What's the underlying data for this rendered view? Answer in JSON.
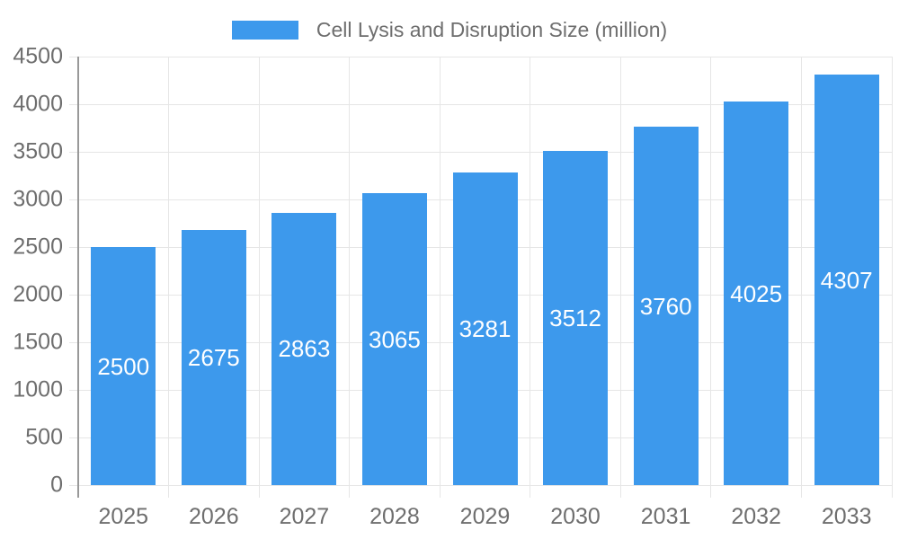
{
  "chart_data": {
    "type": "bar",
    "title": "Cell Lysis and Disruption Size (million)",
    "categories": [
      "2025",
      "2026",
      "2027",
      "2028",
      "2029",
      "2030",
      "2031",
      "2032",
      "2033"
    ],
    "series": [
      {
        "name": "Cell Lysis and Disruption Size (million)",
        "values": [
          2500,
          2675,
          2863,
          3065,
          3281,
          3512,
          3760,
          4025,
          4307
        ]
      }
    ],
    "xlabel": "",
    "ylabel": "",
    "ylim": [
      0,
      4500
    ],
    "yticks": [
      0,
      500,
      1000,
      1500,
      2000,
      2500,
      3000,
      3500,
      4000,
      4500
    ],
    "grid": true,
    "legend_position": "top",
    "value_labels": "inside-center",
    "colors": {
      "bar": "#3d99ec",
      "value_label": "#ffffff",
      "axis_text": "#6e6e6e",
      "grid_line": "#e6e6e6",
      "axis_line": "#999999",
      "background": "#ffffff"
    }
  }
}
